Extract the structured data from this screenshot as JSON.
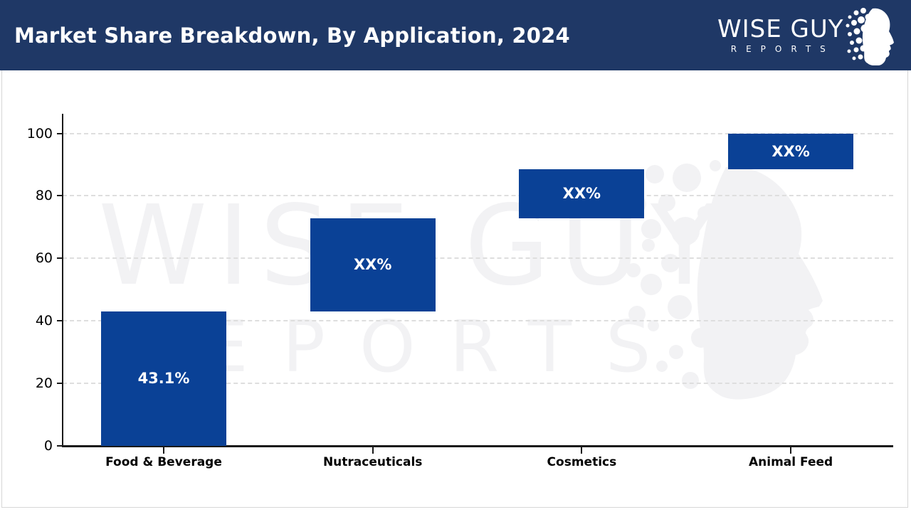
{
  "header": {
    "title": "Market Share Breakdown, By Application, 2024",
    "logo": {
      "line1": "WISE GUY",
      "line2": "REPORTS"
    }
  },
  "watermark": {
    "line1": "WISE GUY",
    "line2": "REPORTS"
  },
  "chart_data": {
    "type": "bar",
    "subtype": "waterfall",
    "title": "Market Share Breakdown, By Application, 2024",
    "categories": [
      "Food & Beverage",
      "Nutraceuticals",
      "Cosmetics",
      "Animal Feed"
    ],
    "segments": [
      {
        "category": "Food & Beverage",
        "start": 0,
        "end": 43.1,
        "implied_value": 43.1,
        "label": "43.1%"
      },
      {
        "category": "Nutraceuticals",
        "start": 43.1,
        "end": 72.8,
        "implied_value": 29.7,
        "label": "XX%"
      },
      {
        "category": "Cosmetics",
        "start": 72.8,
        "end": 88.6,
        "implied_value": 15.8,
        "label": "XX%"
      },
      {
        "category": "Animal Feed",
        "start": 88.6,
        "end": 100,
        "implied_value": 11.4,
        "label": "XX%"
      }
    ],
    "xlabel": "",
    "ylabel": "",
    "ylim": [
      0,
      100
    ],
    "yticks": [
      0,
      20,
      40,
      60,
      80,
      100
    ],
    "grid": "horizontal-dashed",
    "legend": "none"
  },
  "colors": {
    "header_bg": "#1f3866",
    "bar": "#0a4196",
    "grid": "#dedede",
    "axis": "#1a1a1a",
    "watermark": "#f2f2f4",
    "card_border": "#d6d6d6",
    "title_text": "#ffffff",
    "bar_label_text": "#ffffff"
  }
}
